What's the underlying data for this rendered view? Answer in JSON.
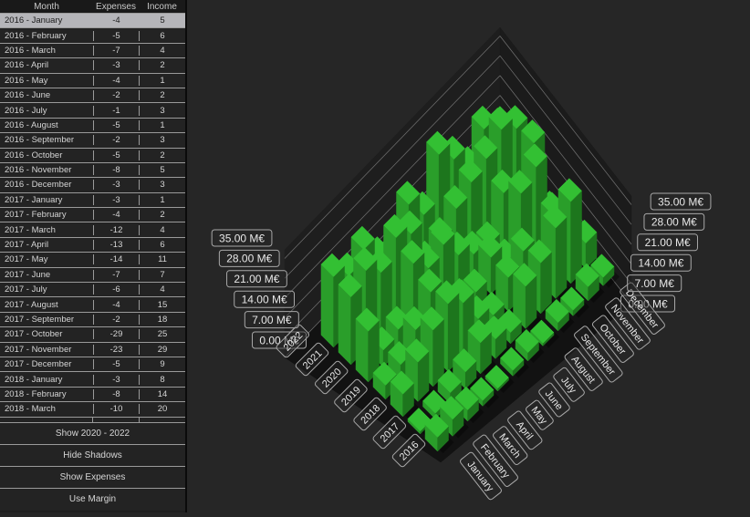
{
  "sidebar": {
    "table": {
      "columns": [
        "Month",
        "Expenses",
        "Income"
      ],
      "rows": [
        {
          "month": "2016 - January",
          "expenses": "-4",
          "income": "5",
          "selected": true
        },
        {
          "month": "2016 - February",
          "expenses": "-5",
          "income": "6",
          "selected": false
        },
        {
          "month": "2016 - March",
          "expenses": "-7",
          "income": "4",
          "selected": false
        },
        {
          "month": "2016 - April",
          "expenses": "-3",
          "income": "2",
          "selected": false
        },
        {
          "month": "2016 - May",
          "expenses": "-4",
          "income": "1",
          "selected": false
        },
        {
          "month": "2016 - June",
          "expenses": "-2",
          "income": "2",
          "selected": false
        },
        {
          "month": "2016 - July",
          "expenses": "-1",
          "income": "3",
          "selected": false
        },
        {
          "month": "2016 - August",
          "expenses": "-5",
          "income": "1",
          "selected": false
        },
        {
          "month": "2016 - September",
          "expenses": "-2",
          "income": "3",
          "selected": false
        },
        {
          "month": "2016 - October",
          "expenses": "-5",
          "income": "2",
          "selected": false
        },
        {
          "month": "2016 - November",
          "expenses": "-8",
          "income": "5",
          "selected": false
        },
        {
          "month": "2016 - December",
          "expenses": "-3",
          "income": "3",
          "selected": false
        },
        {
          "month": "2017 - January",
          "expenses": "-3",
          "income": "1",
          "selected": false
        },
        {
          "month": "2017 - February",
          "expenses": "-4",
          "income": "2",
          "selected": false
        },
        {
          "month": "2017 - March",
          "expenses": "-12",
          "income": "4",
          "selected": false
        },
        {
          "month": "2017 - April",
          "expenses": "-13",
          "income": "6",
          "selected": false
        },
        {
          "month": "2017 - May",
          "expenses": "-14",
          "income": "11",
          "selected": false
        },
        {
          "month": "2017 - June",
          "expenses": "-7",
          "income": "7",
          "selected": false
        },
        {
          "month": "2017 - July",
          "expenses": "-6",
          "income": "4",
          "selected": false
        },
        {
          "month": "2017 - August",
          "expenses": "-4",
          "income": "15",
          "selected": false
        },
        {
          "month": "2017 - September",
          "expenses": "-2",
          "income": "18",
          "selected": false
        },
        {
          "month": "2017 - October",
          "expenses": "-29",
          "income": "25",
          "selected": false
        },
        {
          "month": "2017 - November",
          "expenses": "-23",
          "income": "29",
          "selected": false
        },
        {
          "month": "2017 - December",
          "expenses": "-5",
          "income": "9",
          "selected": false
        },
        {
          "month": "2018 - January",
          "expenses": "-3",
          "income": "8",
          "selected": false
        },
        {
          "month": "2018 - February",
          "expenses": "-8",
          "income": "14",
          "selected": false
        },
        {
          "month": "2018 - March",
          "expenses": "-10",
          "income": "20",
          "selected": false
        }
      ]
    },
    "buttons": [
      {
        "label": "Show 2020 - 2022"
      },
      {
        "label": "Hide Shadows"
      },
      {
        "label": "Show Expenses"
      },
      {
        "label": "Use Margin"
      }
    ]
  },
  "chart_data": {
    "type": "bar",
    "projection": "3d-bars",
    "categories": [
      "January",
      "February",
      "March",
      "April",
      "May",
      "June",
      "July",
      "August",
      "September",
      "October",
      "November",
      "December"
    ],
    "series": [
      {
        "name": "2016",
        "values": [
          5,
          6,
          4,
          2,
          1,
          2,
          3,
          1,
          3,
          2,
          5,
          3
        ]
      },
      {
        "name": "2017",
        "values": [
          1,
          2,
          4,
          6,
          11,
          7,
          4,
          15,
          18,
          25,
          29,
          9
        ]
      },
      {
        "name": "2018",
        "values": [
          8,
          14,
          20,
          24,
          19,
          8,
          4,
          12,
          16,
          2,
          18,
          4
        ]
      },
      {
        "name": "2019",
        "values": [
          5,
          7,
          14,
          22,
          9,
          8,
          6,
          13,
          6,
          25,
          29,
          7
        ]
      },
      {
        "name": "2020",
        "values": [
          18,
          6,
          8,
          26,
          19,
          22,
          13,
          8,
          6,
          19,
          9,
          26
        ]
      },
      {
        "name": "2021",
        "values": [
          24,
          28,
          22,
          29,
          25,
          9,
          12,
          18,
          22,
          25,
          30,
          25
        ]
      },
      {
        "name": "2022",
        "values": [
          25,
          20,
          24,
          15,
          11,
          24,
          15,
          31,
          24,
          15,
          24,
          18
        ]
      }
    ],
    "value_axis": {
      "unit": "M€",
      "min": 0,
      "max": 35,
      "tick_step": 7,
      "tick_labels": [
        "0.00 M€",
        "7.00 M€",
        "14.00 M€",
        "21.00 M€",
        "28.00 M€",
        "35.00 M€"
      ]
    },
    "row_axis_labels": [
      "2016",
      "2017",
      "2018",
      "2019",
      "2020",
      "2021",
      "2022"
    ],
    "legend_position": "none",
    "grid": true,
    "colors": {
      "background": "#262626",
      "wall_left": "#1e1e1e",
      "wall_right": "#1b1b1b",
      "floor": "#121212",
      "gridline": "#8f8f8f",
      "bar_top": "#33c033",
      "bar_left": "#2a9e2a",
      "bar_right": "#1d761d",
      "label_text": "#e8e8e8",
      "label_border": "#a8a8a8",
      "label_bg": "rgba(40,40,40,0.45)",
      "selected_row_bg": "#b5b5b9"
    }
  }
}
